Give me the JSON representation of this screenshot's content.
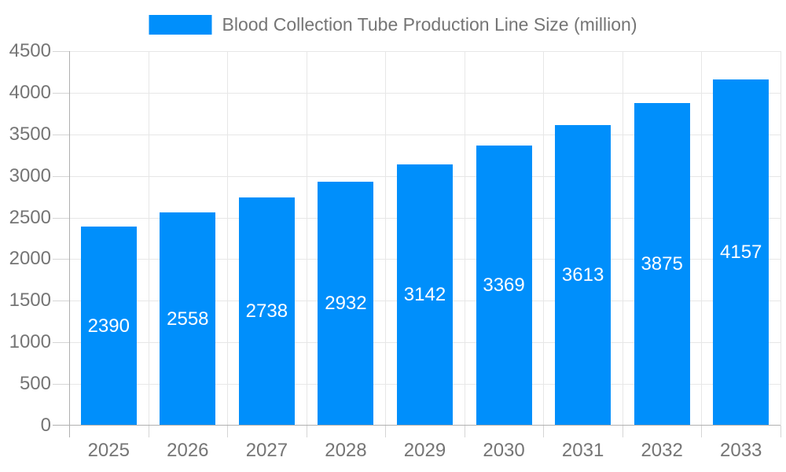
{
  "legend": {
    "position": "top",
    "swatch_color": "#008FFB"
  },
  "chart_data": {
    "type": "bar",
    "title": "Blood Collection Tube Production Line Size (million)",
    "series_name": "Blood Collection Tube Production Line Size (million)",
    "categories": [
      "2025",
      "2026",
      "2027",
      "2028",
      "2029",
      "2030",
      "2031",
      "2032",
      "2033"
    ],
    "values": [
      2390,
      2558,
      2738,
      2932,
      3142,
      3369,
      3613,
      3875,
      4157
    ],
    "xlabel": "",
    "ylabel": "",
    "ylim": [
      0,
      4500
    ],
    "y_ticks": [
      0,
      500,
      1000,
      1500,
      2000,
      2500,
      3000,
      3500,
      4000,
      4500
    ],
    "grid": true,
    "legend_position": "top",
    "data_labels": "inside-center-white"
  },
  "colors": {
    "bar": "#008FFB",
    "axis_text": "#757575",
    "value_label_text": "#ffffff",
    "gridline": "#e7e7e7",
    "axis_line": "#b0b0b0",
    "tick": "#d5d5d5",
    "background": "#ffffff"
  }
}
